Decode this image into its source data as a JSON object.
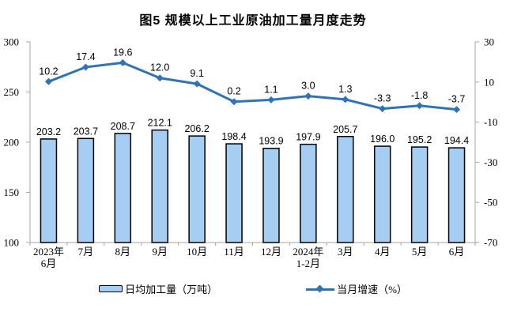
{
  "title": "图5  规模以上工业原油加工量月度走势",
  "chart_data": {
    "type": "combo_bar_line",
    "categories": [
      [
        "2023年",
        "6月"
      ],
      [
        "7月"
      ],
      [
        "8月"
      ],
      [
        "9月"
      ],
      [
        "10月"
      ],
      [
        "11月"
      ],
      [
        "12月"
      ],
      [
        "2024年",
        "1-2月"
      ],
      [
        "3月"
      ],
      [
        "4月"
      ],
      [
        "5月"
      ],
      [
        "6月"
      ]
    ],
    "series": [
      {
        "name": "日均加工量（万吨）",
        "type": "bar",
        "axis": "left",
        "values": [
          203.2,
          203.7,
          208.7,
          212.1,
          206.2,
          198.4,
          193.9,
          197.9,
          205.7,
          196.0,
          195.2,
          194.4
        ]
      },
      {
        "name": "当月增速（%）",
        "type": "line",
        "axis": "right",
        "values": [
          10.2,
          17.4,
          19.6,
          12.0,
          9.1,
          0.2,
          1.1,
          3.0,
          1.3,
          -3.3,
          -1.8,
          -3.7
        ]
      }
    ],
    "left_axis": {
      "min": 100,
      "max": 300,
      "ticks": [
        300,
        250,
        200,
        150,
        100
      ]
    },
    "right_axis": {
      "min": -70,
      "max": 30,
      "ticks": [
        30,
        10,
        -10,
        -30,
        -50,
        -70
      ]
    },
    "grid": false,
    "legend_position": "bottom",
    "data_labels": true
  },
  "legend": {
    "bar_label": "日均加工量（万吨）",
    "line_label": "当月增速（%）"
  },
  "colors": {
    "bar_fill": "#A6CDF2",
    "bar_border": "#000000",
    "line": "#2E74B5",
    "axis_line": "#A6A6A6",
    "text": "#000000"
  }
}
